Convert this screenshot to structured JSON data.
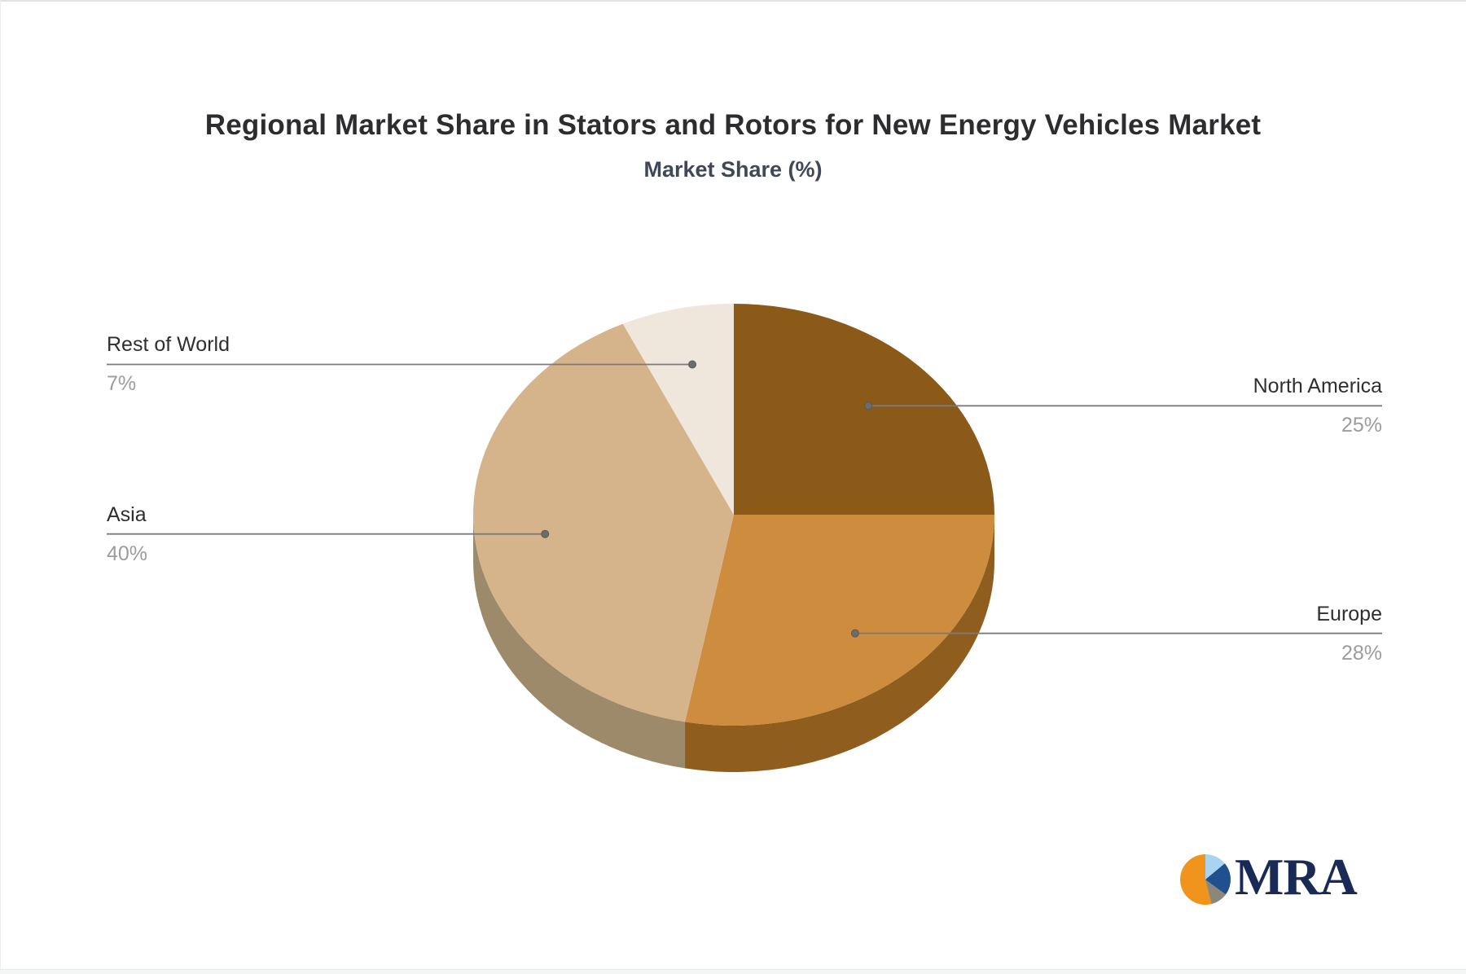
{
  "page": {
    "title": "Regional Market Share in Stators and Rotors for New Energy Vehicles Market",
    "subtitle": "Market Share (%)"
  },
  "chart_data": {
    "type": "pie",
    "title": "Regional Market Share in Stators and Rotors for New Energy Vehicles Market",
    "subtitle": "Market Share (%)",
    "unit": "%",
    "is_3d": true,
    "legend": "none",
    "start_angle_deg": 0,
    "direction": "clockwise",
    "slices": [
      {
        "name": "North America",
        "value": 25,
        "pct_label": "25%",
        "color": "#8B5A18",
        "side_color": "#5E3D10"
      },
      {
        "name": "Europe",
        "value": 28,
        "pct_label": "28%",
        "color": "#CE8C3E",
        "side_color": "#8F5E1F"
      },
      {
        "name": "Asia",
        "value": 40,
        "pct_label": "40%",
        "color": "#D5B48C",
        "side_color": "#9C8A6B"
      },
      {
        "name": "Rest of World",
        "value": 7,
        "pct_label": "7%",
        "color": "#EFE6DC",
        "side_color": "#A89B8D"
      }
    ],
    "label_colors": {
      "name_color": "#2f2f2f",
      "value_color": "#9c9c9c",
      "connector_color": "#7b7b7b",
      "connector_dot_color": "#6c6c6c"
    }
  },
  "logo": {
    "text": "MRA",
    "text_color": "#1A2A57",
    "icon_colors": {
      "orange": "#F1941D",
      "light_blue": "#A9D4F0",
      "navy": "#20508F",
      "gray": "#8C877D"
    }
  }
}
